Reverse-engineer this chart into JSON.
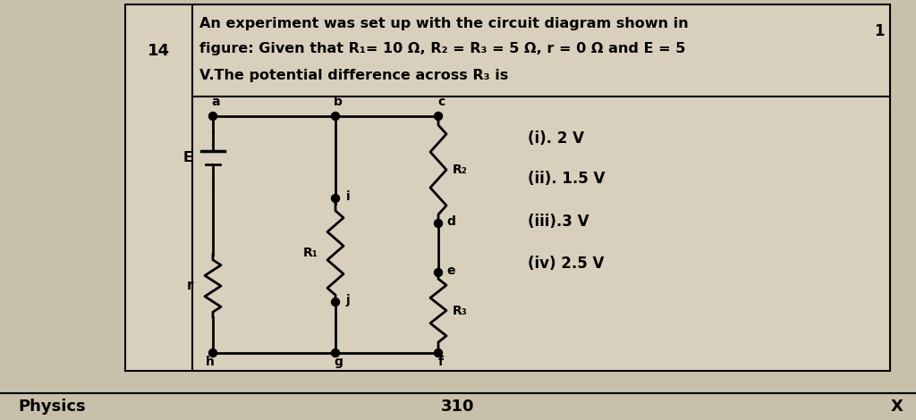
{
  "question_num": "14",
  "corner_num": "1",
  "title_line1": "An experiment was set up with the circuit diagram shown in",
  "title_line2": "figure: Given that R₁= 10 Ω, R₂ = R₃ = 5 Ω, r = 0 Ω and E = 5",
  "title_line3": "V.The potential difference across R₃ is",
  "options": [
    "(i). 2 V",
    "(ii). 1.5 V",
    "(iii).3 V",
    "(iv) 2.5 V"
  ],
  "footer_text": "310",
  "footer_left": "Physics",
  "footer_right": "X",
  "bg_color": "#c8c0aa",
  "cell_bg": "#d8d0bc",
  "box_color": "#ffffff",
  "circuit_color": "#000000",
  "text_color": "#000000",
  "lw_border": 1.5,
  "lw_wire": 2.0
}
